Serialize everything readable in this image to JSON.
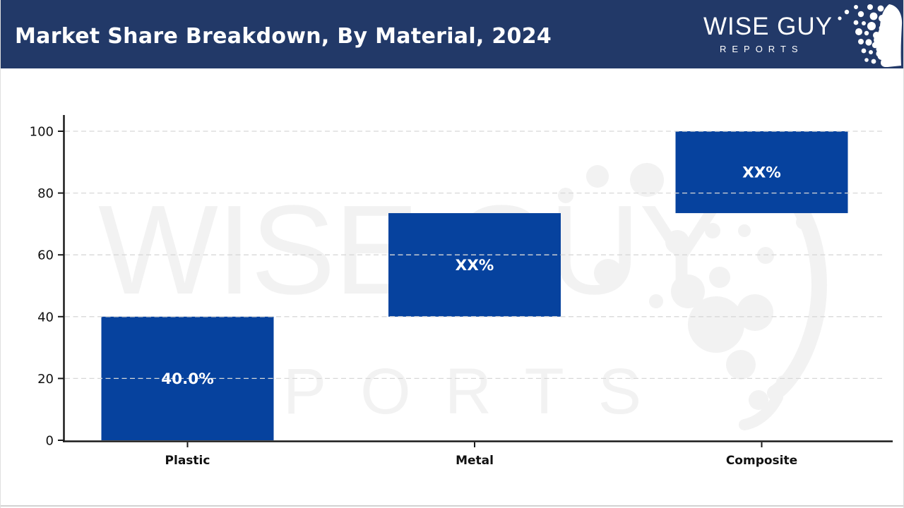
{
  "header": {
    "title": "Market Share Breakdown, By Material, 2024",
    "bg_color": "#223968",
    "logo": {
      "name": "WISE GUY",
      "sub": "REPORTS"
    }
  },
  "watermark": {
    "name": "WISE GUY",
    "sub": "REPORTS"
  },
  "chart_data": {
    "type": "bar",
    "subtype": "floating_waterfall_segments",
    "title": "Market Share Breakdown, By Material, 2024",
    "categories": [
      "Plastic",
      "Metal",
      "Composite"
    ],
    "segments": [
      {
        "category": "Plastic",
        "start": 0,
        "end": 40,
        "label": "40.0%"
      },
      {
        "category": "Metal",
        "start": 40,
        "end": 73.5,
        "label": "XX%"
      },
      {
        "category": "Composite",
        "start": 73.5,
        "end": 100,
        "label": "XX%"
      }
    ],
    "yticks": [
      0,
      20,
      40,
      60,
      80,
      100
    ],
    "ylim": [
      0,
      105
    ],
    "xlabel": "",
    "ylabel": "",
    "legend": "none",
    "grid": {
      "axis": "y",
      "style": "dashed",
      "color": "#d8d8d8",
      "drawn_over_bars": true
    },
    "colors": {
      "bar": "#06429e",
      "bar_label": "#ffffff",
      "axis": "#1a1a1a",
      "tick_label": "#111111",
      "header_bg": "#223968",
      "watermark": "#f2f2f2"
    }
  }
}
